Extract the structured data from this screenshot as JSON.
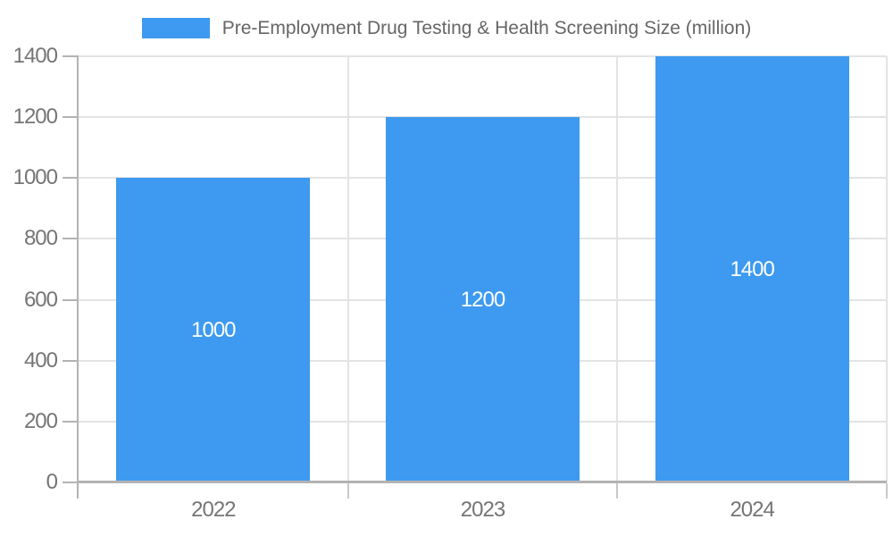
{
  "chart_data": {
    "type": "bar",
    "title": "Pre-Employment Drug Testing & Health Screening Size (million)",
    "categories": [
      "2022",
      "2023",
      "2024"
    ],
    "values": [
      1000,
      1200,
      1400
    ],
    "xlabel": "",
    "ylabel": "",
    "ylim": [
      0,
      1400
    ],
    "yticks": [
      0,
      200,
      400,
      600,
      800,
      1000,
      1200,
      1400
    ],
    "grid": true,
    "legend_position": "top",
    "data_labels": "inside-center",
    "colors": {
      "bar": "#3d9af0",
      "grid": "#e3e3e3",
      "axis": "#b3b3b3",
      "tickText": "#757575",
      "legendText": "#666666",
      "barLabel": "#ffffff"
    }
  }
}
